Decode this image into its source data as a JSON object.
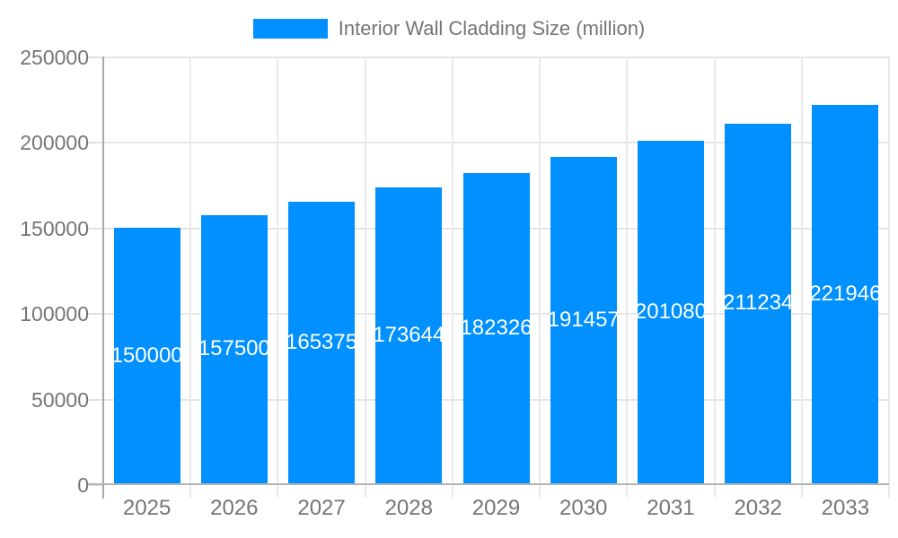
{
  "legend": {
    "label": "Interior Wall Cladding Size (million)"
  },
  "chart_data": {
    "type": "bar",
    "title": "Interior Wall Cladding Size (million)",
    "categories": [
      "2025",
      "2026",
      "2027",
      "2028",
      "2029",
      "2030",
      "2031",
      "2032",
      "2033"
    ],
    "values": [
      150000,
      157500,
      165375,
      173644,
      182326,
      191457,
      201080,
      211234,
      221946
    ],
    "xlabel": "",
    "ylabel": "",
    "ylim": [
      0,
      250000
    ],
    "yticks": [
      0,
      50000,
      100000,
      150000,
      200000,
      250000
    ],
    "grid": "both",
    "legend_position": "top",
    "colors": {
      "bar": "#0190ff",
      "bar_label": "#ffffff",
      "axis_text": "#757575",
      "gridline": "#e9e9e9",
      "axis_line": "#b3b3b3"
    }
  }
}
